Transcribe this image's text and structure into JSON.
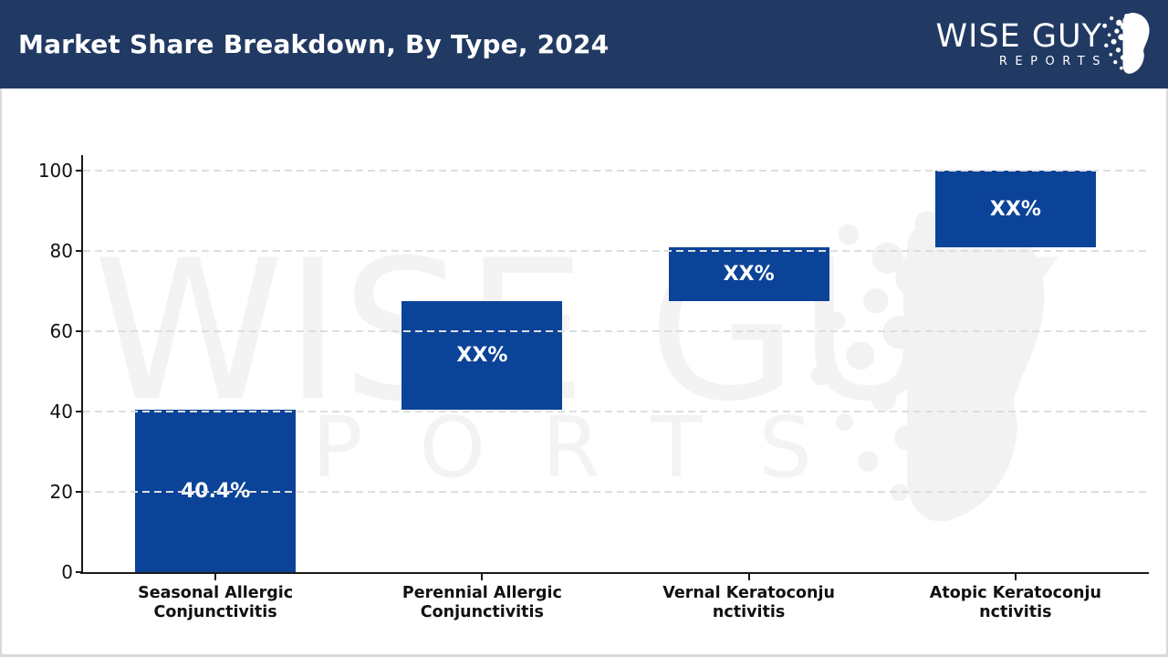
{
  "header": {
    "title": "Market Share Breakdown, By Type, 2024",
    "logo": {
      "line1": "WISE GUY",
      "line2": "REPORTS"
    }
  },
  "watermark": {
    "line1": "WISE GUY",
    "line2": "PORTS",
    "face_icon": "dotted-face-profile"
  },
  "chart_data": {
    "type": "bar",
    "subtype": "floating-waterfall-segments",
    "title": "Market Share Breakdown, By Type, 2024",
    "categories": [
      "Seasonal Allergic Conjunctivitis",
      "Perennial Allergic Conjunctivitis",
      "Vernal Keratoconjunctivitis",
      "Atopic Keratoconjunctivitis"
    ],
    "category_labels_wrapped": [
      [
        "Seasonal Allergic",
        "Conjunctivitis"
      ],
      [
        "Perennial Allergic",
        "Conjunctivitis"
      ],
      [
        "Vernal Keratoconju",
        "nctivitis"
      ],
      [
        "Atopic Keratoconju",
        "nctivitis"
      ]
    ],
    "bars": [
      {
        "start": 0,
        "end": 40.4,
        "label": "40.4%"
      },
      {
        "start": 40.4,
        "end": 67.5,
        "label": "XX%"
      },
      {
        "start": 67.5,
        "end": 80.9,
        "label": "XX%"
      },
      {
        "start": 80.9,
        "end": 100,
        "label": "XX%"
      }
    ],
    "ylim": [
      0,
      100
    ],
    "yticks": [
      0,
      20,
      40,
      60,
      80,
      100
    ],
    "grid": "horizontal-dashed-above-bars",
    "legend": "none",
    "colors": {
      "bar": "#0b4398",
      "header": "#213a63",
      "gridline": "#dedede",
      "axis": "#1a1a1a",
      "watermark": "#f3f3f3"
    }
  }
}
